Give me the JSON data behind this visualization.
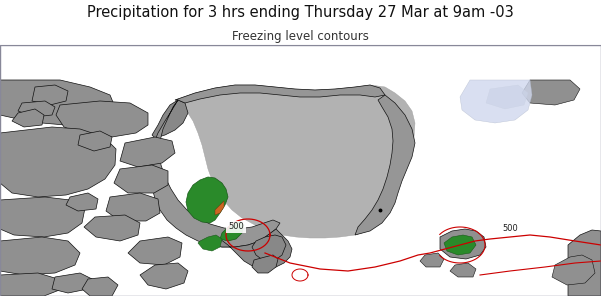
{
  "title": "Precipitation for 3 hrs ending Thursday 27 Mar at 9am -03",
  "subtitle": "Freezing level contours",
  "title_fontsize": 10.5,
  "subtitle_fontsize": 8.5,
  "ocean_color": "#c8d0e8",
  "land_color": "#909090",
  "ice_color": "#b0b0b0",
  "precip_green": "#2a8a2a",
  "precip_orange": "#cc6622",
  "contour_red": "#cc0000",
  "header_bg": "#ffffff",
  "contour_label": "500",
  "map_border": "#888899",
  "small_dot_color": "#222222"
}
